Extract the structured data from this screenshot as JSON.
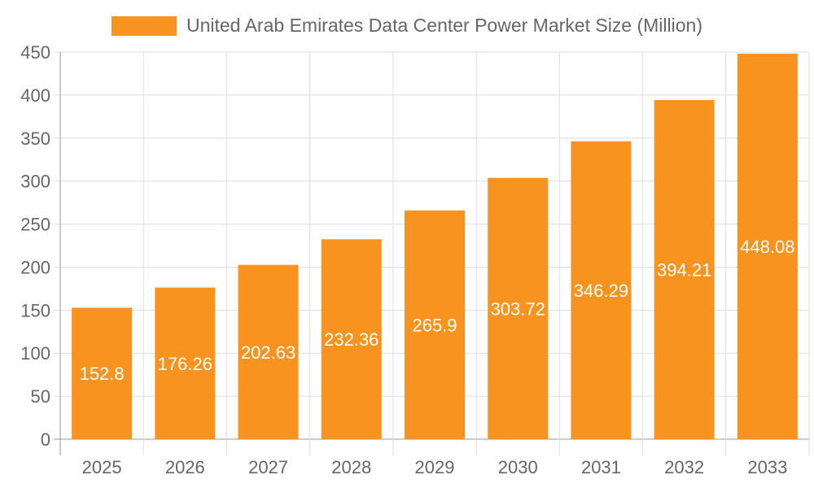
{
  "chart_data": {
    "type": "bar",
    "title": "",
    "categories": [
      "2025",
      "2026",
      "2027",
      "2028",
      "2029",
      "2030",
      "2031",
      "2032",
      "2033"
    ],
    "series": [
      {
        "name": "United Arab Emirates Data Center Power Market Size (Million)",
        "values": [
          152.8,
          176.26,
          202.63,
          232.36,
          265.9,
          303.72,
          346.29,
          394.21,
          448.08
        ]
      }
    ],
    "data_labels": [
      "152.8",
      "176.26",
      "202.63",
      "232.36",
      "265.9",
      "303.72",
      "346.29",
      "394.21",
      "448.08"
    ],
    "xlabel": "",
    "ylabel": "",
    "ylim": [
      0,
      450
    ],
    "yticks": [
      0,
      50,
      100,
      150,
      200,
      250,
      300,
      350,
      400,
      450
    ],
    "grid": true,
    "legend": "top",
    "colors": {
      "bar": "#F7931E",
      "grid": "#dddddd",
      "axis": "#999999",
      "text": "#666666"
    }
  }
}
